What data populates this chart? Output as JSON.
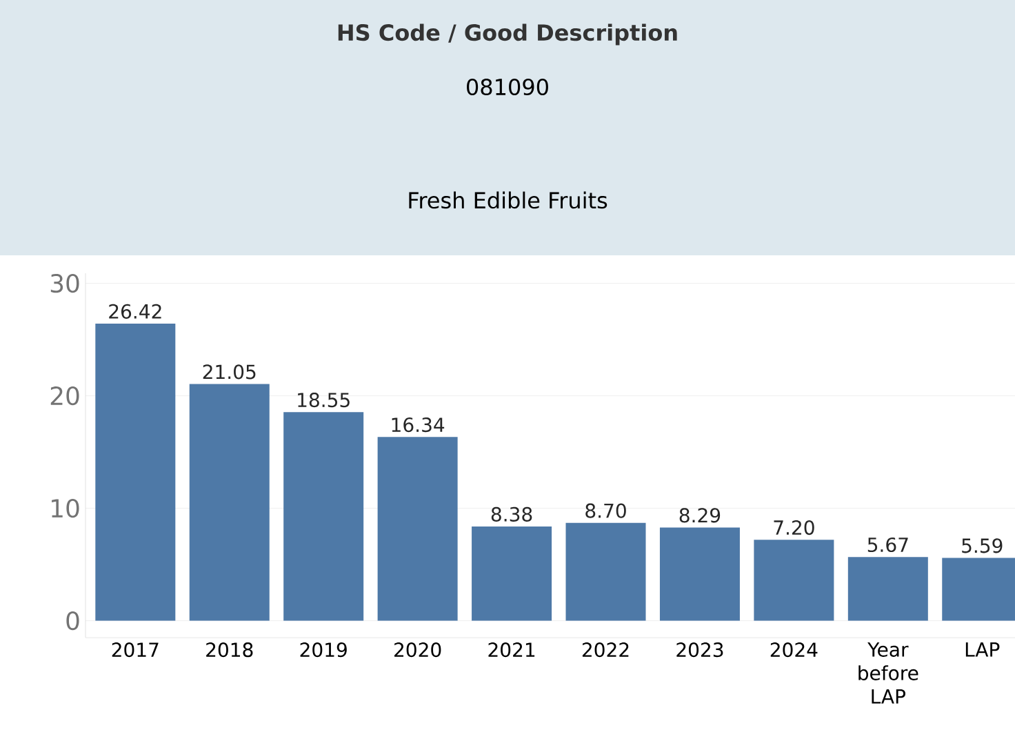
{
  "chart_data": {
    "type": "bar",
    "title": "HS Code / Good Description",
    "subtitle": "081090",
    "annotations": [
      "Fresh Edible Fruits"
    ],
    "categories": [
      "2017",
      "2018",
      "2019",
      "2020",
      "2021",
      "2022",
      "2023",
      "2024",
      "Year before LAP",
      "LAP"
    ],
    "values": [
      26.42,
      21.05,
      18.55,
      16.34,
      8.38,
      8.7,
      8.29,
      7.2,
      5.67,
      5.59
    ],
    "value_labels": [
      "26.42",
      "21.05",
      "18.55",
      "16.34",
      "8.38",
      "8.70",
      "8.29",
      "7.20",
      "5.67",
      "5.59"
    ],
    "color": "#4e79a7",
    "ylim": [
      -1.5,
      30.9
    ],
    "yticks": [
      0,
      10,
      20,
      30
    ],
    "grid": "y"
  }
}
